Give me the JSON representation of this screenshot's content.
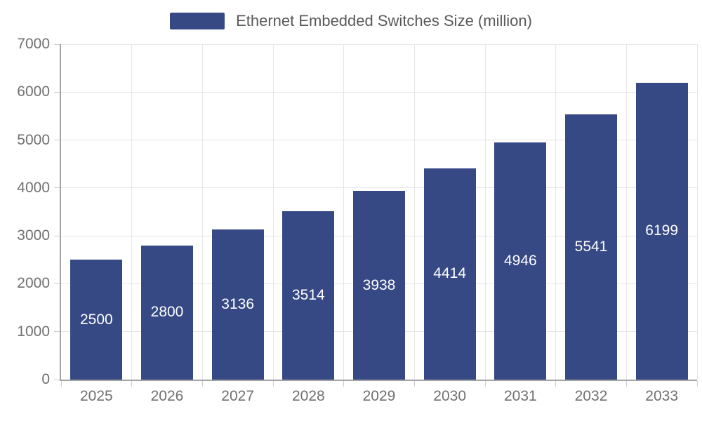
{
  "chart_data": {
    "type": "bar",
    "title": "Ethernet Embedded Switches Size (million)",
    "legend": {
      "label": "Ethernet Embedded Switches Size (million)",
      "position": "top"
    },
    "categories": [
      "2025",
      "2026",
      "2027",
      "2028",
      "2029",
      "2030",
      "2031",
      "2032",
      "2033"
    ],
    "values": [
      2500,
      2800,
      3136,
      3514,
      3938,
      4414,
      4946,
      5541,
      6199
    ],
    "xlabel": "",
    "ylabel": "",
    "ylim": [
      0,
      7000
    ],
    "ytick_step": 1000,
    "grid": true,
    "colors": {
      "bar": "#374985",
      "value_label": "#ffffff",
      "axis_label": "#707070",
      "legend_text": "#595959",
      "grid_line": "#e6e6e6",
      "axis_line": "#a3a3a3",
      "tick": "#cccccc",
      "background": "#ffffff"
    }
  }
}
